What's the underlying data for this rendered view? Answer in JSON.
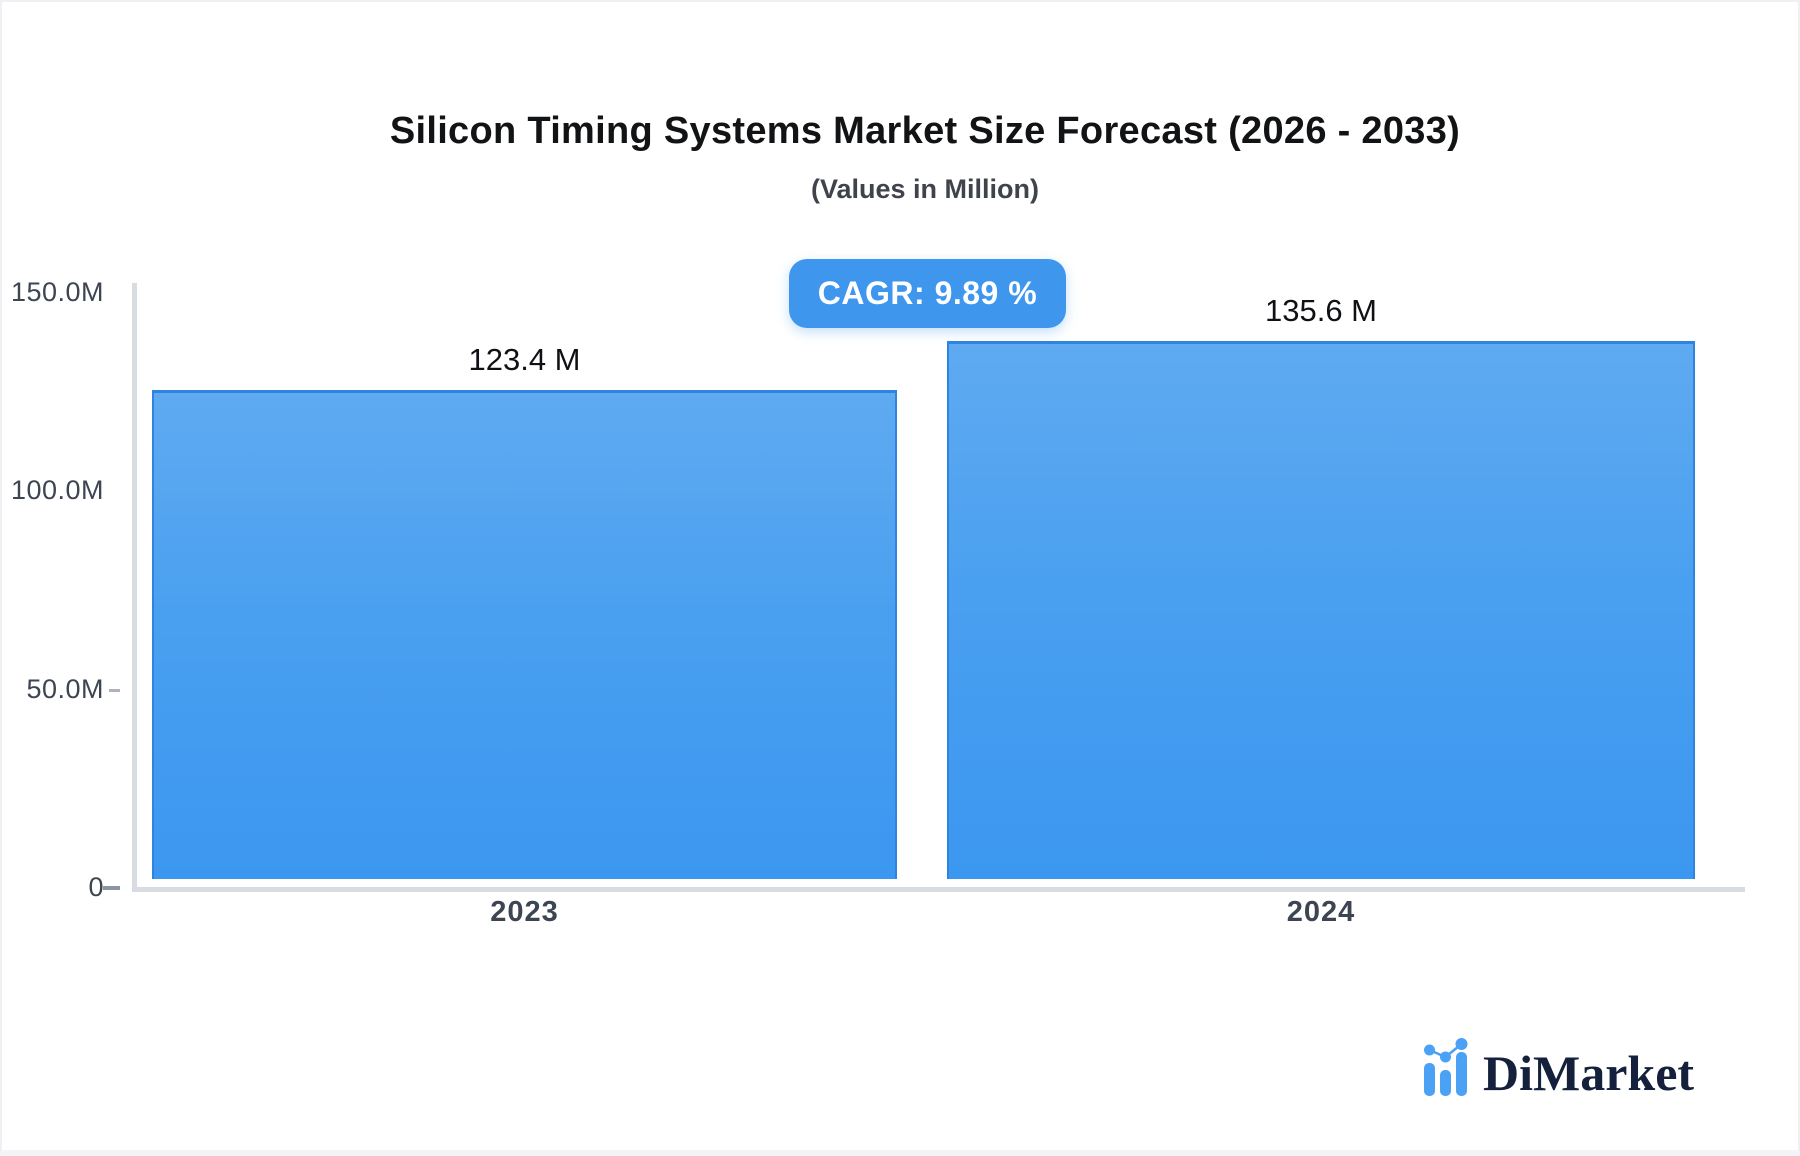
{
  "chart_data": {
    "type": "bar",
    "title": "Silicon Timing Systems Market Size Forecast (2026 - 2033)",
    "subtitle": "(Values in Million)",
    "categories": [
      "2023",
      "2024"
    ],
    "values": [
      123.4,
      135.6
    ],
    "bar_labels": [
      "123.4 M",
      "135.6 M"
    ],
    "unit": "Million",
    "ylim": [
      0,
      150
    ],
    "yticks": [
      {
        "value": 150,
        "label": "150.0M"
      },
      {
        "value": 100,
        "label": "100.0M"
      },
      {
        "value": 50,
        "label": "50.0M"
      },
      {
        "value": 0,
        "label": "0"
      }
    ],
    "grid": false,
    "legend": false,
    "bar_color": "#47a0f1"
  },
  "badge": {
    "label": "CAGR: 9.89 %"
  },
  "branding": {
    "name": "DiMarket"
  },
  "colors": {
    "bar_gradient_top": "#5faaf1",
    "bar_gradient_bottom": "#3c97f0",
    "bar_border": "#2e84de",
    "badge_background": "#3e96ed",
    "axis_line": "#d8dbe1",
    "tick_text": "#3e4552",
    "value_text": "#0f1115",
    "title_text": "#121315",
    "logo_text": "#14203c",
    "logo_blue": "#4ba1f4"
  }
}
